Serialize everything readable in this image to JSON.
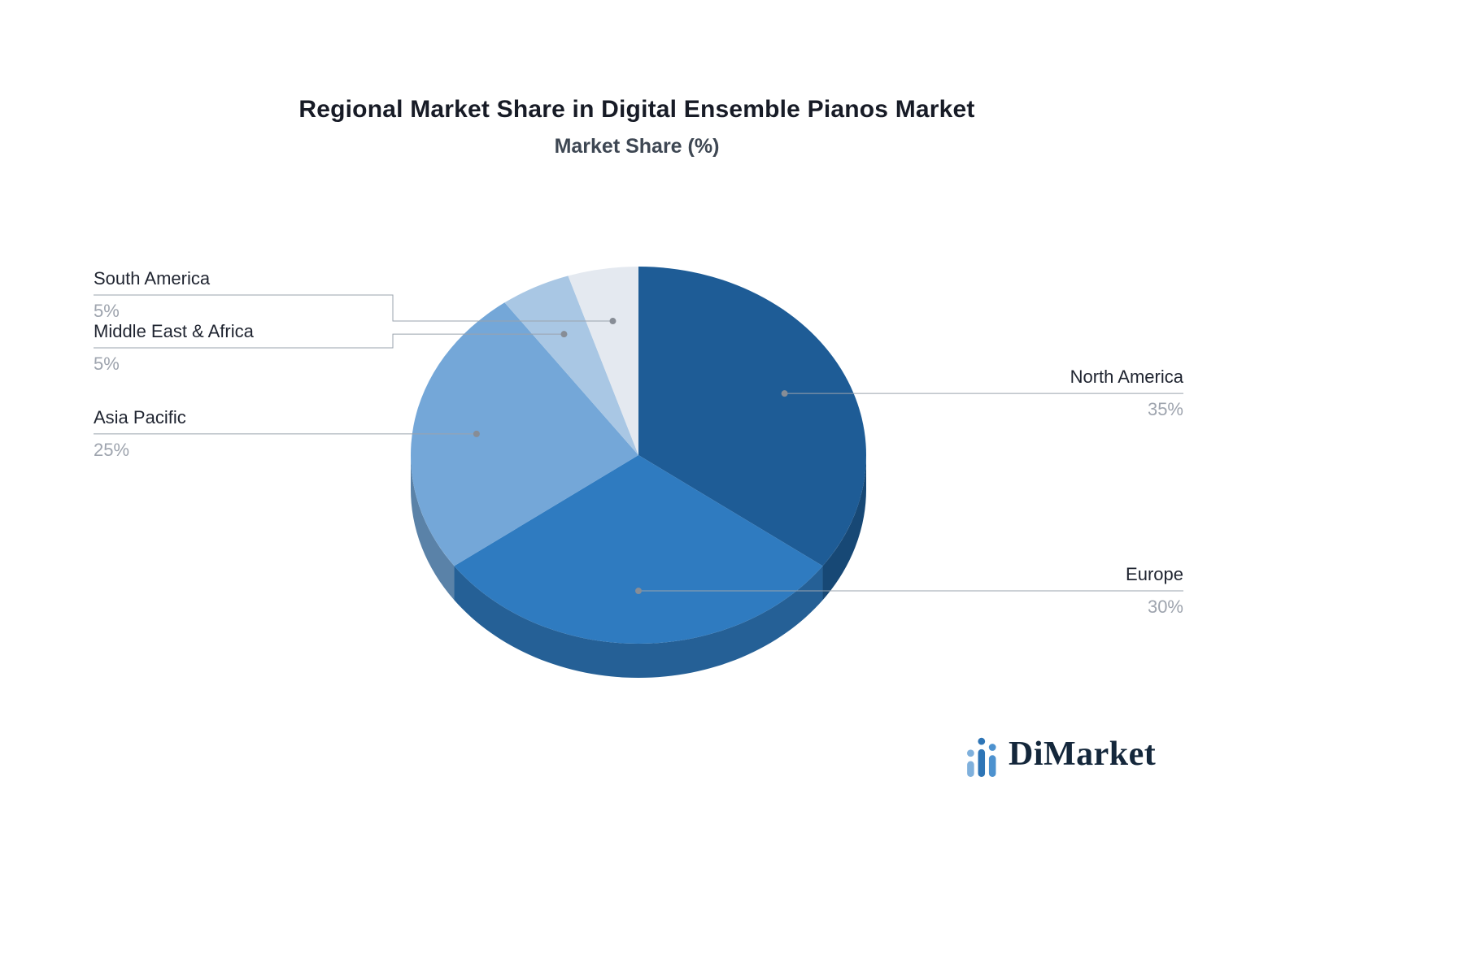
{
  "page": {
    "background": "#ffffff"
  },
  "header": {
    "title": "Regional Market Share in Digital Ensemble Pianos Market",
    "subtitle": "Market Share (%)"
  },
  "chart_data": {
    "type": "pie",
    "style": "3d-pie",
    "title": "Regional Market Share in Digital Ensemble Pianos Market",
    "subtitle": "Market Share (%)",
    "unit": "%",
    "start_angle_deg": 0,
    "direction": "clockwise",
    "legend_position": "none",
    "labels_style": "callout-with-leader-lines",
    "slices": [
      {
        "label": "North America",
        "value": 35,
        "display": "35%",
        "color": "#1E5C96"
      },
      {
        "label": "Europe",
        "value": 30,
        "display": "30%",
        "color": "#2F7BC0"
      },
      {
        "label": "Asia Pacific",
        "value": 25,
        "display": "25%",
        "color": "#74A7D8"
      },
      {
        "label": "Middle East & Africa",
        "value": 5,
        "display": "5%",
        "color": "#A9C7E4"
      },
      {
        "label": "South America",
        "value": 5,
        "display": "5%",
        "color": "#E4E9F0"
      }
    ],
    "leader_line_color": "#9AA3AD",
    "label_text_color": "#1F2430",
    "value_text_color": "#9EA4AE"
  },
  "brand": {
    "name": "DiMarket",
    "icon": "bar-chart-logo-icon",
    "text_color": "#14273B",
    "accent_color": "#2E75B6"
  }
}
